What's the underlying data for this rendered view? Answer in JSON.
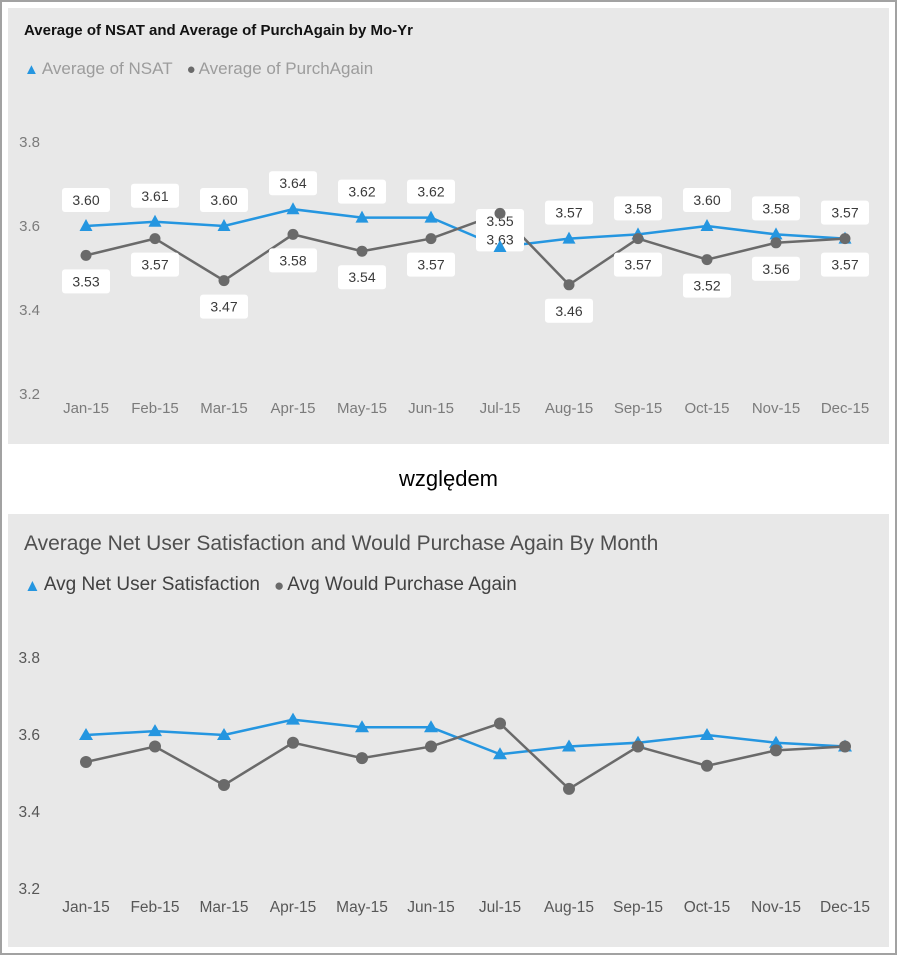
{
  "separator": {
    "text": "względem"
  },
  "chart_data": [
    {
      "type": "line",
      "title": "Average of NSAT and Average of PurchAgain by Mo-Yr",
      "categories": [
        "Jan-15",
        "Feb-15",
        "Mar-15",
        "Apr-15",
        "May-15",
        "Jun-15",
        "Jul-15",
        "Aug-15",
        "Sep-15",
        "Oct-15",
        "Nov-15",
        "Dec-15"
      ],
      "series": [
        {
          "name": "Average of NSAT",
          "marker": "triangle",
          "color": "#2596E0",
          "values": [
            3.6,
            3.61,
            3.6,
            3.64,
            3.62,
            3.62,
            3.55,
            3.57,
            3.58,
            3.6,
            3.58,
            3.57
          ]
        },
        {
          "name": "Average of PurchAgain",
          "marker": "circle",
          "color": "#6A6A6A",
          "values": [
            3.53,
            3.57,
            3.47,
            3.58,
            3.54,
            3.57,
            3.63,
            3.46,
            3.57,
            3.52,
            3.56,
            3.57
          ]
        }
      ],
      "ylim": [
        3.2,
        3.8
      ],
      "y_ticks": [
        3.8,
        3.6,
        3.4,
        3.2
      ],
      "data_labels": true,
      "grid": false,
      "legend_position": "top",
      "legend_color": "#9C9C9C",
      "background": "#E8E8E8",
      "data_label_box_color": "#FFFFFF",
      "data_label_text_color": "#3A3A3A"
    },
    {
      "type": "line",
      "title": "Average Net User Satisfaction and Would Purchase Again By Month",
      "categories": [
        "Jan-15",
        "Feb-15",
        "Mar-15",
        "Apr-15",
        "May-15",
        "Jun-15",
        "Jul-15",
        "Aug-15",
        "Sep-15",
        "Oct-15",
        "Nov-15",
        "Dec-15"
      ],
      "series": [
        {
          "name": "Avg Net User Satisfaction",
          "marker": "triangle",
          "color": "#2596E0",
          "values": [
            3.6,
            3.61,
            3.6,
            3.64,
            3.62,
            3.62,
            3.55,
            3.57,
            3.58,
            3.6,
            3.58,
            3.57
          ]
        },
        {
          "name": "Avg Would Purchase Again",
          "marker": "circle",
          "color": "#6A6A6A",
          "values": [
            3.53,
            3.57,
            3.47,
            3.58,
            3.54,
            3.57,
            3.63,
            3.46,
            3.57,
            3.52,
            3.56,
            3.57
          ]
        }
      ],
      "ylim": [
        3.2,
        3.8
      ],
      "y_ticks": [
        3.8,
        3.6,
        3.4,
        3.2
      ],
      "data_labels": false,
      "grid": false,
      "legend_position": "top",
      "legend_color": "#414141",
      "background": "#E8E8E8"
    }
  ]
}
